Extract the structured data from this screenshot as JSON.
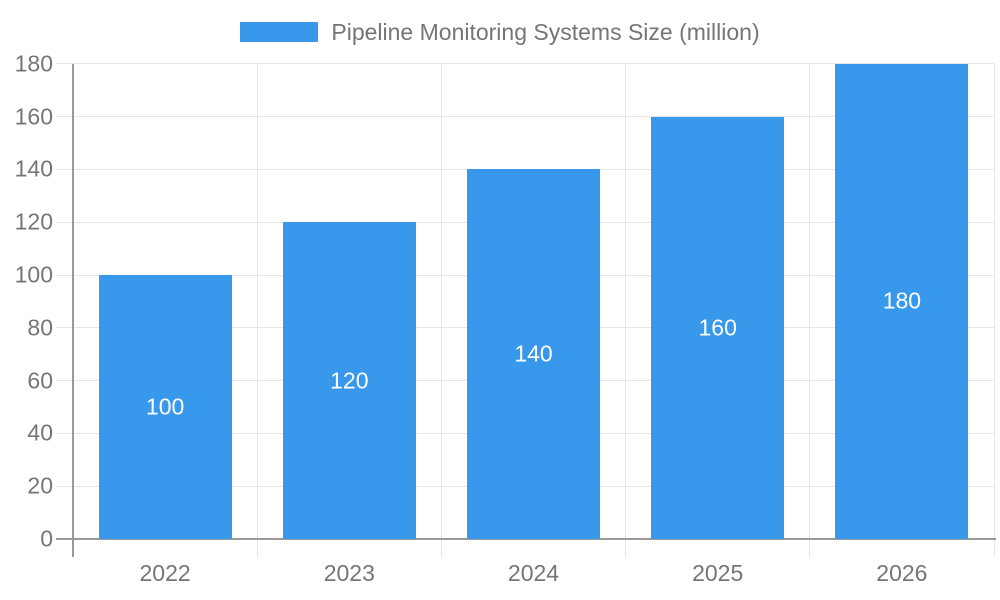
{
  "chart_data": {
    "type": "bar",
    "title": "Pipeline Monitoring Systems Size (million)",
    "categories": [
      "2022",
      "2023",
      "2024",
      "2025",
      "2026"
    ],
    "values": [
      100,
      120,
      140,
      160,
      180
    ],
    "bar_labels": [
      "100",
      "120",
      "140",
      "160",
      "180"
    ],
    "y_ticks": [
      0,
      20,
      40,
      60,
      80,
      100,
      120,
      140,
      160,
      180
    ],
    "y_tick_labels": [
      "0",
      "20",
      "40",
      "60",
      "80",
      "100",
      "120",
      "140",
      "160",
      "180"
    ],
    "ylim": [
      0,
      180
    ],
    "xlabel": "",
    "ylabel": "",
    "grid": true,
    "legend_position": "top",
    "bar_label_position": "center-inside"
  },
  "colors": {
    "bar": "#3898EC",
    "grid": "#e6e6e6",
    "axis": "#9a9a9a",
    "tick_text": "#757575",
    "bar_label_text": "#ffffff",
    "background": "#ffffff"
  }
}
